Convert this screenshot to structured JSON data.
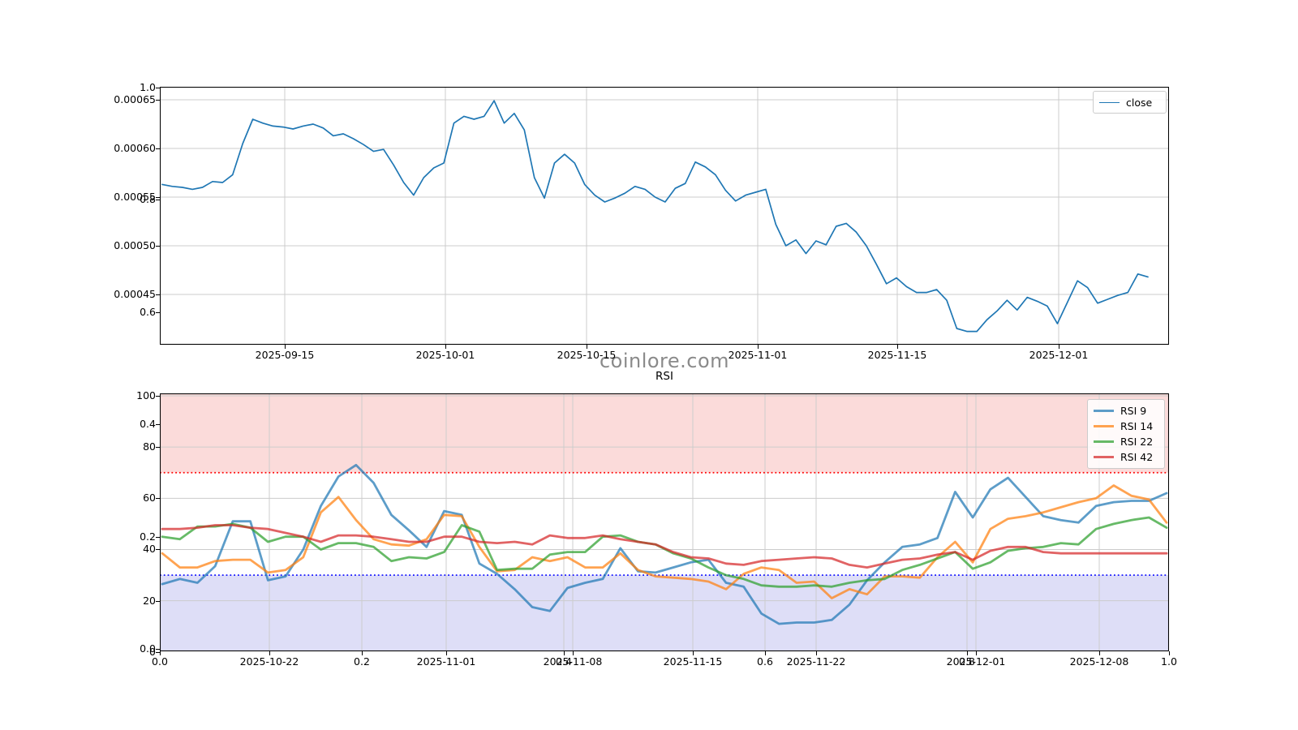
{
  "watermark": "coinlore.com",
  "secondary_axis": {
    "y_tick_labels": [
      "1.0",
      "0.8",
      "0.6",
      "0.4",
      "0.2",
      "0.0"
    ],
    "x_tick_labels": [
      "0.0",
      "0.2",
      "0.4",
      "0.6",
      "0.8",
      "1.0"
    ]
  },
  "chart_data": [
    {
      "type": "line",
      "title": "",
      "legend_position": "upper right",
      "grid": true,
      "x_tick_labels": [
        "2025-09-15",
        "2025-10-01",
        "2025-10-15",
        "2025-11-01",
        "2025-11-15",
        "2025-12-01"
      ],
      "y_tick_labels": [
        "0.00065",
        "0.00060",
        "0.00055",
        "0.00050",
        "0.00045"
      ],
      "y_tick_values": [
        0.00065,
        0.0006,
        0.00055,
        0.0005,
        0.00045
      ],
      "xlim": [
        "2025-09-02",
        "2025-12-12"
      ],
      "ylim": [
        0.000398,
        0.000663
      ],
      "x_unit": "daily",
      "series": [
        {
          "name": "close",
          "color": "#1f77b4",
          "x_start": "2025-09-03",
          "x_end": "2025-12-10",
          "values": [
            0.000563,
            0.000561,
            0.00056,
            0.000558,
            0.00056,
            0.000566,
            0.000565,
            0.000573,
            0.000605,
            0.00063,
            0.000626,
            0.000623,
            0.000622,
            0.00062,
            0.000623,
            0.000625,
            0.000621,
            0.000613,
            0.000615,
            0.00061,
            0.000604,
            0.000597,
            0.000599,
            0.000583,
            0.000565,
            0.000552,
            0.00057,
            0.00058,
            0.000585,
            0.000626,
            0.000633,
            0.00063,
            0.000633,
            0.000649,
            0.000626,
            0.000636,
            0.000619,
            0.00057,
            0.000549,
            0.000585,
            0.000594,
            0.000585,
            0.000563,
            0.000552,
            0.000545,
            0.000549,
            0.000554,
            0.000561,
            0.000558,
            0.00055,
            0.000545,
            0.000559,
            0.000564,
            0.000586,
            0.000581,
            0.000573,
            0.000557,
            0.000546,
            0.000552,
            0.000555,
            0.000558,
            0.000522,
            0.0005,
            0.000506,
            0.000492,
            0.000505,
            0.000501,
            0.00052,
            0.000523,
            0.000514,
            0.0005,
            0.000481,
            0.000461,
            0.000467,
            0.000458,
            0.000452,
            0.000452,
            0.000455,
            0.000444,
            0.000415,
            0.000412,
            0.000412,
            0.000424,
            0.000433,
            0.000444,
            0.000434,
            0.000447,
            0.000443,
            0.000438,
            0.00042,
            0.000442,
            0.000464,
            0.000457,
            0.000441,
            0.000445,
            0.000449,
            0.000452,
            0.000471,
            0.000468
          ]
        }
      ]
    },
    {
      "type": "line",
      "title": "RSI",
      "legend_position": "upper right",
      "grid": true,
      "x_tick_labels": [
        "2025-10-22",
        "2025-11-01",
        "2025-11-08",
        "2025-11-15",
        "2025-11-22",
        "2025-12-01",
        "2025-12-08"
      ],
      "y_tick_labels": [
        "100",
        "80",
        "60",
        "40",
        "20",
        "0"
      ],
      "y_tick_values": [
        100,
        80,
        60,
        40,
        20,
        0
      ],
      "xlim": [
        "2025-10-16",
        "2025-12-12"
      ],
      "ylim": [
        0,
        101
      ],
      "x_unit": "daily",
      "overbought_level": 70,
      "oversold_level": 30,
      "overbought_band_color": "#fbdbda",
      "oversold_band_color": "#dedef7",
      "overbought_line_color": "#ff0000",
      "oversold_line_color": "#0000ff",
      "series": [
        {
          "name": "RSI 9",
          "color": "#1f77b4",
          "values": [
            26.5,
            28.5,
            27,
            33.5,
            51,
            51,
            28,
            29.5,
            40,
            57,
            68.5,
            73,
            66,
            53.5,
            47.5,
            41,
            55,
            53.5,
            34.5,
            30.5,
            24.5,
            17.5,
            16,
            25,
            27,
            28.5,
            40.5,
            31.5,
            31,
            33,
            35,
            36,
            27,
            25.5,
            15,
            11,
            11.5,
            11.5,
            12.5,
            18.5,
            28,
            35,
            41,
            42,
            44.5,
            62.5,
            52.5,
            63.5,
            68,
            60.5,
            53,
            51.5,
            50.5,
            57,
            58.5,
            59,
            59,
            62
          ]
        },
        {
          "name": "RSI 14",
          "color": "#ff7f0e",
          "values": [
            38.5,
            33,
            33,
            35.5,
            36,
            36,
            31,
            32,
            37,
            54.5,
            60.5,
            51.5,
            44,
            42,
            41.5,
            44,
            53.5,
            53,
            41,
            31.5,
            32,
            37,
            35.5,
            37,
            33,
            33,
            38.5,
            32,
            29.5,
            29,
            28.5,
            27.5,
            24.5,
            30.5,
            33,
            32,
            27,
            27.5,
            21,
            24.5,
            22.5,
            29.5,
            29.5,
            29,
            37,
            43,
            35,
            48,
            52,
            53,
            54.5,
            56.5,
            58.5,
            60,
            65,
            61,
            59.5,
            50.5
          ]
        },
        {
          "name": "RSI 22",
          "color": "#2ca02c",
          "values": [
            45,
            44,
            49,
            49,
            50,
            48.5,
            43,
            45,
            45,
            40,
            42.5,
            42.5,
            41,
            35.5,
            37,
            36.5,
            39,
            49.5,
            47,
            32,
            32.5,
            32.5,
            38,
            39,
            39,
            45,
            45.5,
            43,
            42,
            38.5,
            36.5,
            33,
            30,
            28.5,
            26,
            25.5,
            25.5,
            26,
            25.5,
            27,
            28,
            28.5,
            32,
            34,
            36.5,
            39,
            32.5,
            35,
            39.5,
            40.5,
            41,
            42.5,
            42,
            48,
            50,
            51.5,
            52.5,
            48.5
          ]
        },
        {
          "name": "RSI 42",
          "color": "#d62728",
          "values": [
            48,
            48,
            48.5,
            49.5,
            49.5,
            48.5,
            48,
            46.5,
            45,
            43,
            45.5,
            45.5,
            45,
            44,
            43,
            43,
            45,
            45,
            43,
            42.5,
            43,
            42,
            45.5,
            44.5,
            44.5,
            45.5,
            44,
            43,
            42,
            39,
            37,
            36.5,
            34.5,
            34,
            35.5,
            36,
            36.5,
            37,
            36.5,
            34,
            33,
            34.5,
            36,
            36.5,
            38,
            39,
            36,
            39.5,
            41,
            41,
            39,
            38.5,
            38.5,
            38.5,
            38.5,
            38.5,
            38.5,
            38.5
          ]
        }
      ]
    }
  ]
}
